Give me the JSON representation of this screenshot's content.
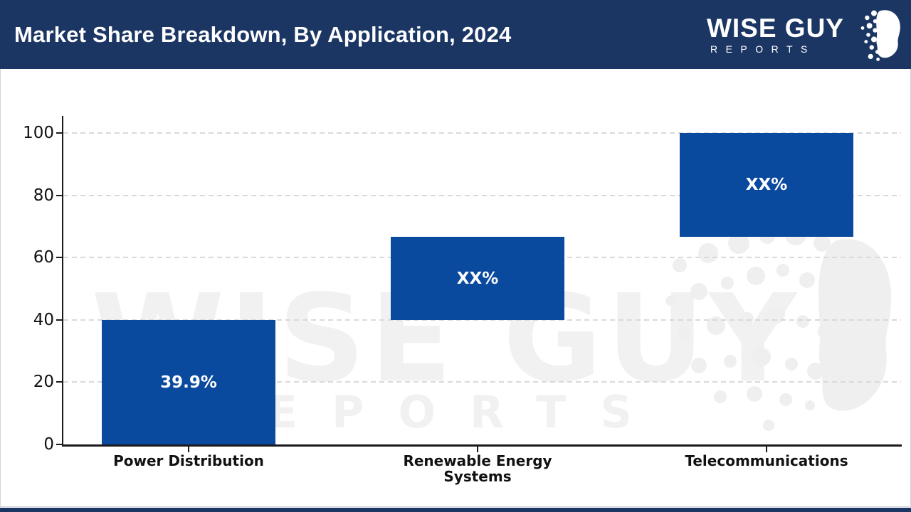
{
  "header": {
    "title": "Market Share Breakdown, By Application, 2024",
    "logo": {
      "line1": "WISE GUY",
      "line2": "REPORTS"
    }
  },
  "watermark": {
    "line1": "WISE GUY",
    "line2": "REPORTS"
  },
  "colors": {
    "header_bg": "#1c3664",
    "footer_bg": "#1c3664",
    "bar": "#0a4a9e",
    "bar_label": "#ffffff",
    "gridline": "#d9d9d9",
    "watermark": "#f1f1f1"
  },
  "chart_data": {
    "type": "bar",
    "variant": "waterfall",
    "title": "Market Share Breakdown, By Application, 2024",
    "categories": [
      "Power Distribution",
      "Renewable Energy Systems",
      "Telecommunications"
    ],
    "series": [
      {
        "name": "Market Share %",
        "segments": [
          {
            "category": "Power Distribution",
            "start": 0,
            "end": 39.9,
            "label": "39.9%"
          },
          {
            "category": "Renewable Energy Systems",
            "start": 39.9,
            "end": 66.7,
            "label": "XX%"
          },
          {
            "category": "Telecommunications",
            "start": 66.7,
            "end": 100,
            "label": "XX%"
          }
        ]
      }
    ],
    "bar_labels": [
      "39.9%",
      "XX%",
      "XX%"
    ],
    "xlabel": "",
    "ylabel": "",
    "y_ticks": [
      0,
      20,
      40,
      60,
      80,
      100
    ],
    "ylim": [
      0,
      105.7
    ],
    "grid": true,
    "grid_style": "dashed-horizontal",
    "legend": false,
    "bar_color": "#0a4a9e",
    "bar_label_color": "#ffffff"
  }
}
